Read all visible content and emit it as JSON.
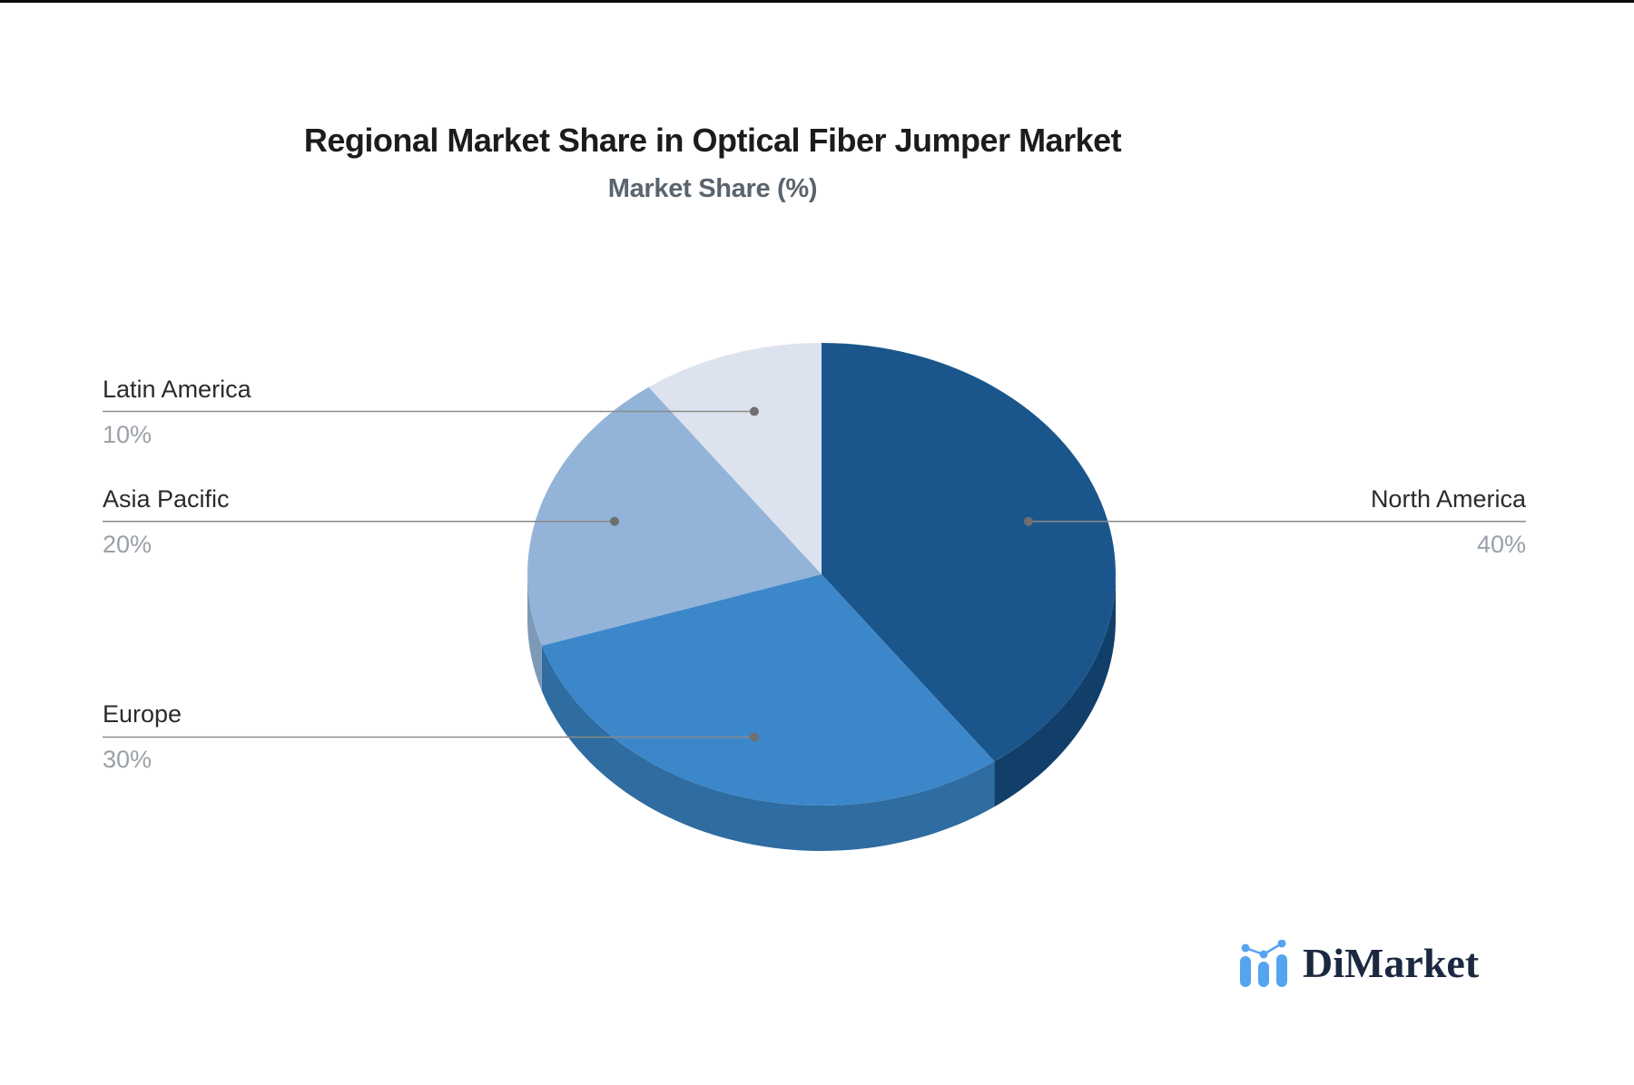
{
  "chart_data": {
    "type": "pie",
    "style": "3d",
    "title": "Regional Market Share in Optical Fiber Jumper Market",
    "subtitle": "Market Share (%)",
    "unit": "%",
    "direction": "clockwise",
    "start_angle_deg": 0,
    "labels_show_percent": true,
    "legend_position": "none",
    "slices": [
      {
        "label": "North America",
        "value": 40,
        "color": "#1A568C",
        "side_color": "#123F69"
      },
      {
        "label": "Europe",
        "value": 30,
        "color": "#3C87C9",
        "side_color": "#2E6CA1"
      },
      {
        "label": "Asia Pacific",
        "value": 20,
        "color": "#93B4D8",
        "side_color": "#7E99B8"
      },
      {
        "label": "Latin America",
        "value": 10,
        "color": "#DDE3EE",
        "side_color": "#C6CEDE"
      }
    ],
    "leader_line_color": "#8A8A8A",
    "leader_dot_color": "#6F6F6F",
    "label_color": "#2B2B2B",
    "percent_color": "#9BA1A8"
  },
  "brand": {
    "name": "DiMarket",
    "icon": "bar-chart-logo-icon",
    "icon_color": "#54A4F0",
    "text_color": "#1B2940"
  }
}
